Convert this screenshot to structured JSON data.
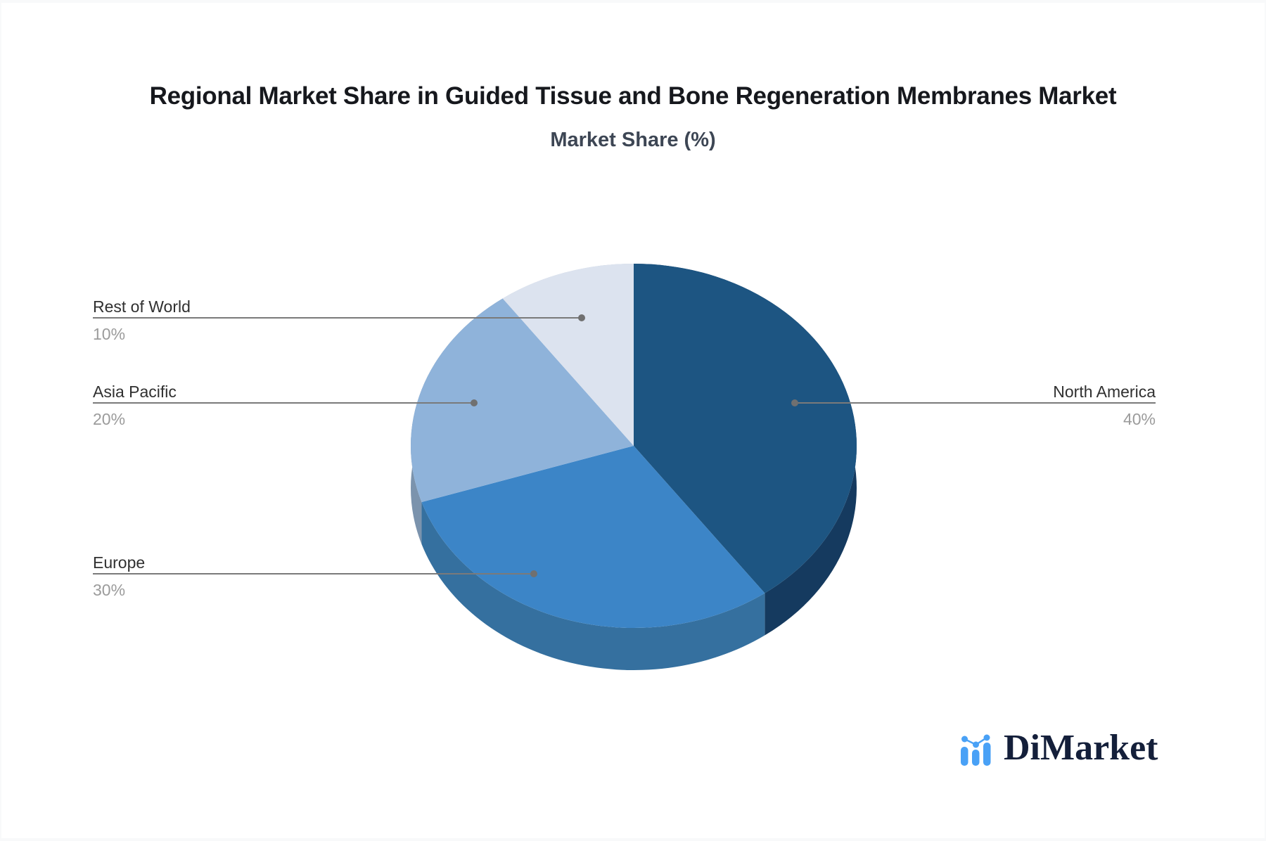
{
  "page": {
    "title": "Regional Market Share in Guided Tissue and Bone Regeneration Membranes Market",
    "subtitle": "Market Share (%)"
  },
  "chart_data": {
    "type": "pie",
    "style": "3d",
    "title": "Regional Market Share in Guided Tissue and Bone Regeneration Membranes Market",
    "subtitle": "Market Share (%)",
    "unit": "%",
    "start_angle_deg": 0,
    "direction": "clockwise",
    "categories": [
      "North America",
      "Europe",
      "Asia Pacific",
      "Rest of World"
    ],
    "values": [
      40,
      30,
      20,
      10
    ],
    "labels": [
      {
        "name": "North America",
        "pct": "40%"
      },
      {
        "name": "Europe",
        "pct": "30%"
      },
      {
        "name": "Asia Pacific",
        "pct": "20%"
      },
      {
        "name": "Rest of World",
        "pct": "10%"
      }
    ],
    "slice_colors_top": [
      "#1d5582",
      "#3c85c7",
      "#8fb3da",
      "#dce3ef"
    ],
    "slice_colors_side": [
      "#153a5f",
      "#35709f",
      "#7b93ad",
      "#b9c3d3"
    ],
    "leader_line_color": "#7a7a7a",
    "leader_dot_color": "#707070",
    "legend_position": "callout-labels"
  },
  "branding": {
    "logo_text": "DiMarket",
    "logo_icon": "bar-line-chart-icon",
    "logo_bar_color": "#49a1f6",
    "logo_text_color": "#141f3a"
  }
}
